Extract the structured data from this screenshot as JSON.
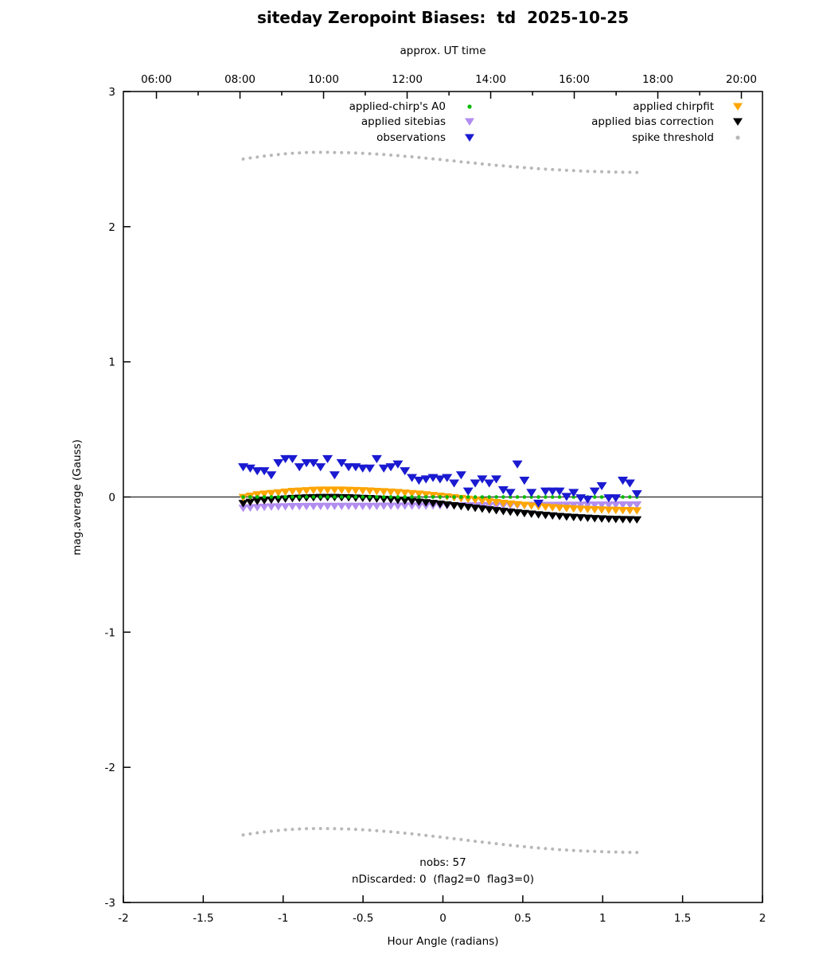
{
  "title": "siteday Zeropoint Biases:  td  2025-10-25",
  "footer": {
    "nobs": "nobs: 57",
    "ndiscarded": "nDiscarded: 0  (flag2=0  flag3=0)"
  },
  "legend": {
    "left": [
      {
        "label": "applied-chirp's A0",
        "series_index": "5"
      },
      {
        "label": "applied sitebias",
        "series_index": "2"
      },
      {
        "label": "observations",
        "series_index": "6"
      }
    ],
    "right": [
      {
        "label": "applied chirpfit",
        "series_index": "4"
      },
      {
        "label": "applied bias correction",
        "series_index": "3"
      },
      {
        "label": "spike threshold",
        "series_index": "0"
      }
    ]
  },
  "chart_data": {
    "type": "scatter",
    "title": "siteday Zeropoint Biases:  td  2025-10-25",
    "xlabel": "Hour Angle (radians)",
    "ylabel": "mag.average (Gauss)",
    "x2label": "approx. UT time",
    "xlim": [
      -2,
      2
    ],
    "ylim": [
      -3,
      3
    ],
    "grid": false,
    "zero_line": true,
    "legend_position": "top-inside-two-columns",
    "annotations": [
      "nobs: 57",
      "nDiscarded: 0  (flag2=0  flag3=0)"
    ],
    "x_ticks": {
      "labels": [
        "-2",
        "-1.5",
        "-1",
        "-0.5",
        "0",
        "0.5",
        "1",
        "1.5",
        "2"
      ],
      "values": [
        -2,
        -1.5,
        -1,
        -0.5,
        0,
        0.5,
        1,
        1.5,
        2
      ]
    },
    "y_ticks": {
      "labels": [
        "3",
        "2",
        "1",
        "0",
        "-1",
        "-2",
        "-3"
      ],
      "values": [
        3,
        2,
        1,
        0,
        -1,
        -2,
        -3
      ]
    },
    "x2_ticks": {
      "labels": [
        "06:00",
        "08:00",
        "10:00",
        "12:00",
        "14:00",
        "16:00",
        "18:00",
        "20:00"
      ],
      "values": [
        -1.793,
        -1.27,
        -0.747,
        -0.224,
        0.299,
        0.822,
        1.345,
        1.868
      ],
      "minor": [
        -1.532,
        -1.009,
        -0.486,
        0.038,
        0.561,
        1.084,
        1.607
      ]
    },
    "x": [
      -1.25,
      -1.206,
      -1.162,
      -1.118,
      -1.074,
      -1.03,
      -0.986,
      -0.942,
      -0.898,
      -0.854,
      -0.81,
      -0.766,
      -0.722,
      -0.678,
      -0.634,
      -0.59,
      -0.546,
      -0.502,
      -0.458,
      -0.414,
      -0.37,
      -0.326,
      -0.282,
      -0.238,
      -0.194,
      -0.15,
      -0.106,
      -0.062,
      -0.018,
      0.026,
      0.07,
      0.114,
      0.158,
      0.202,
      0.246,
      0.29,
      0.334,
      0.378,
      0.422,
      0.466,
      0.51,
      0.554,
      0.598,
      0.642,
      0.686,
      0.73,
      0.774,
      0.818,
      0.862,
      0.906,
      0.95,
      0.994,
      1.038,
      1.082,
      1.126,
      1.17,
      1.214
    ],
    "series": [
      {
        "name": "spike threshold (upper)",
        "color": "#b8b8b8",
        "marker": "dot",
        "size": 2,
        "values": [
          2.5,
          2.508,
          2.515,
          2.522,
          2.528,
          2.534,
          2.539,
          2.543,
          2.546,
          2.549,
          2.55,
          2.55,
          2.55,
          2.549,
          2.548,
          2.547,
          2.545,
          2.543,
          2.54,
          2.537,
          2.534,
          2.53,
          2.526,
          2.521,
          2.517,
          2.512,
          2.507,
          2.502,
          2.497,
          2.491,
          2.486,
          2.48,
          2.475,
          2.47,
          2.464,
          2.459,
          2.454,
          2.45,
          2.445,
          2.441,
          2.437,
          2.433,
          2.429,
          2.426,
          2.423,
          2.42,
          2.417,
          2.415,
          2.412,
          2.41,
          2.408,
          2.407,
          2.405,
          2.404,
          2.403,
          2.402,
          2.401
        ]
      },
      {
        "name": "spike threshold (lower)",
        "color": "#b8b8b8",
        "marker": "dot",
        "size": 2,
        "values": [
          -2.5,
          -2.492,
          -2.485,
          -2.478,
          -2.472,
          -2.467,
          -2.462,
          -2.459,
          -2.456,
          -2.454,
          -2.453,
          -2.453,
          -2.453,
          -2.454,
          -2.455,
          -2.457,
          -2.459,
          -2.462,
          -2.465,
          -2.469,
          -2.473,
          -2.477,
          -2.482,
          -2.487,
          -2.492,
          -2.498,
          -2.504,
          -2.51,
          -2.516,
          -2.522,
          -2.528,
          -2.534,
          -2.541,
          -2.547,
          -2.553,
          -2.559,
          -2.565,
          -2.571,
          -2.577,
          -2.582,
          -2.587,
          -2.592,
          -2.597,
          -2.601,
          -2.605,
          -2.609,
          -2.612,
          -2.615,
          -2.618,
          -2.62,
          -2.622,
          -2.624,
          -2.626,
          -2.627,
          -2.628,
          -2.629,
          -2.63
        ]
      },
      {
        "name": "applied sitebias",
        "color": "#b28df0",
        "marker": "triangle-down",
        "size": 12,
        "values": [
          -0.085,
          -0.082,
          -0.079,
          -0.077,
          -0.075,
          -0.074,
          -0.073,
          -0.072,
          -0.072,
          -0.071,
          -0.071,
          -0.07,
          -0.07,
          -0.07,
          -0.07,
          -0.07,
          -0.07,
          -0.07,
          -0.07,
          -0.07,
          -0.069,
          -0.069,
          -0.069,
          -0.068,
          -0.068,
          -0.068,
          -0.068,
          -0.067,
          -0.067,
          -0.067,
          -0.067,
          -0.066,
          -0.066,
          -0.066,
          -0.065,
          -0.065,
          -0.065,
          -0.065,
          -0.064,
          -0.064,
          -0.064,
          -0.063,
          -0.063,
          -0.063,
          -0.063,
          -0.062,
          -0.062,
          -0.062,
          -0.062,
          -0.061,
          -0.061,
          -0.061,
          -0.061,
          -0.06,
          -0.06,
          -0.06,
          -0.06
        ]
      },
      {
        "name": "applied bias correction",
        "color": "#000000",
        "marker": "triangle-down",
        "size": 12,
        "values": [
          -0.05,
          -0.04,
          -0.033,
          -0.028,
          -0.024,
          -0.02,
          -0.016,
          -0.012,
          -0.01,
          -0.008,
          -0.006,
          -0.005,
          -0.005,
          -0.005,
          -0.006,
          -0.007,
          -0.009,
          -0.011,
          -0.013,
          -0.016,
          -0.019,
          -0.022,
          -0.026,
          -0.03,
          -0.034,
          -0.039,
          -0.044,
          -0.049,
          -0.054,
          -0.06,
          -0.066,
          -0.072,
          -0.078,
          -0.084,
          -0.09,
          -0.096,
          -0.102,
          -0.108,
          -0.113,
          -0.118,
          -0.123,
          -0.128,
          -0.133,
          -0.137,
          -0.141,
          -0.145,
          -0.149,
          -0.152,
          -0.155,
          -0.158,
          -0.161,
          -0.163,
          -0.165,
          -0.167,
          -0.168,
          -0.169,
          -0.17
        ]
      },
      {
        "name": "applied chirpfit",
        "color": "#ffa500",
        "marker": "triangle-down",
        "size": 12,
        "values": [
          -0.005,
          0.005,
          0.015,
          0.02,
          0.025,
          0.03,
          0.035,
          0.04,
          0.042,
          0.045,
          0.048,
          0.05,
          0.05,
          0.05,
          0.05,
          0.048,
          0.047,
          0.045,
          0.043,
          0.04,
          0.038,
          0.035,
          0.032,
          0.028,
          0.024,
          0.02,
          0.015,
          0.01,
          0.005,
          0,
          -0.006,
          -0.012,
          -0.018,
          -0.024,
          -0.03,
          -0.036,
          -0.042,
          -0.048,
          -0.053,
          -0.058,
          -0.063,
          -0.068,
          -0.072,
          -0.076,
          -0.08,
          -0.083,
          -0.086,
          -0.089,
          -0.091,
          -0.093,
          -0.095,
          -0.097,
          -0.099,
          -0.1,
          -0.101,
          -0.102,
          -0.103
        ]
      },
      {
        "name": "applied-chirp's A0",
        "color": "#00bb00",
        "marker": "dot",
        "size": 2.3,
        "values": [
          0,
          0,
          0,
          0,
          0,
          0,
          0,
          0,
          0,
          0,
          0,
          0,
          0,
          0,
          0,
          0,
          0,
          0,
          0,
          0,
          0,
          0,
          0,
          0,
          0,
          0,
          0,
          0,
          0,
          0,
          0,
          0,
          0,
          0,
          0,
          0,
          0,
          0,
          0,
          0,
          0,
          0,
          0,
          0,
          0,
          0,
          0,
          0,
          0,
          0,
          0,
          0,
          0,
          0,
          0,
          0,
          0
        ]
      },
      {
        "name": "observations",
        "color": "#1a1ad1",
        "marker": "triangle-down",
        "size": 13,
        "values": [
          0.22,
          0.21,
          0.19,
          0.19,
          0.16,
          0.25,
          0.28,
          0.28,
          0.22,
          0.25,
          0.25,
          0.22,
          0.28,
          0.16,
          0.25,
          0.22,
          0.22,
          0.21,
          0.21,
          0.28,
          0.21,
          0.22,
          0.24,
          0.19,
          0.14,
          0.12,
          0.13,
          0.14,
          0.13,
          0.14,
          0.1,
          0.16,
          0.04,
          0.1,
          0.13,
          0.1,
          0.13,
          0.05,
          0.03,
          0.24,
          0.12,
          0.03,
          -0.05,
          0.04,
          0.04,
          0.04,
          0,
          0.03,
          -0.01,
          -0.02,
          0.04,
          0.08,
          -0.01,
          -0.01,
          0.12,
          0.1,
          0.02
        ]
      }
    ]
  }
}
